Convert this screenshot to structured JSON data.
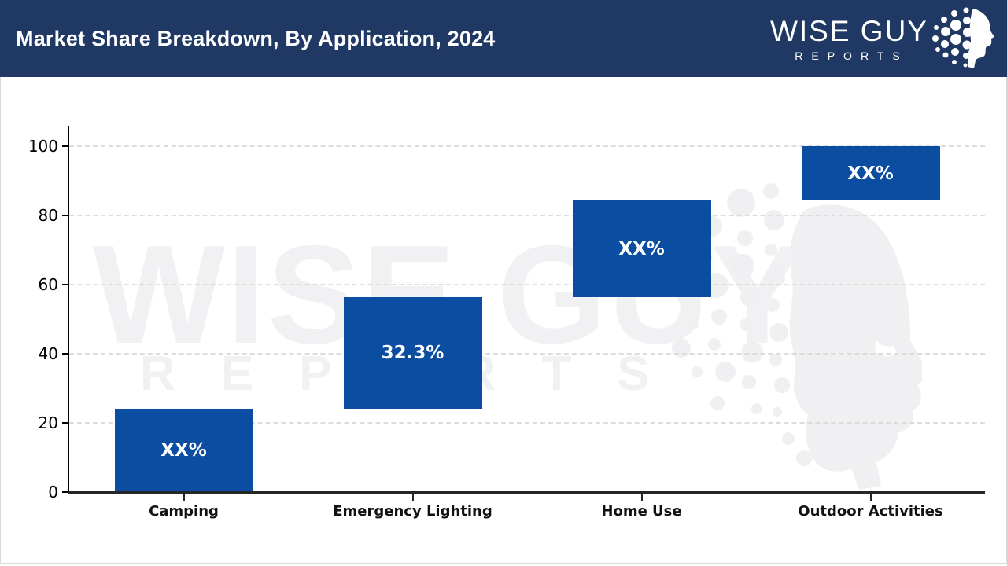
{
  "header": {
    "title": "Market Share Breakdown, By Application, 2024",
    "bg_color": "#1f3864",
    "logo": {
      "line1": "WISE GUY",
      "line2": "REPORTS"
    }
  },
  "watermark": {
    "line1": "WISE GUY",
    "line2": "REPORTS"
  },
  "chart_data": {
    "type": "bar",
    "subtype": "waterfall",
    "title": "Market Share Breakdown, By Application, 2024",
    "categories": [
      "Camping",
      "Emergency Lighting",
      "Home Use",
      "Outdoor Activities"
    ],
    "segments": [
      {
        "category": "Camping",
        "start": 0,
        "end": 24,
        "label": "XX%"
      },
      {
        "category": "Emergency Lighting",
        "start": 24,
        "end": 56.3,
        "label": "32.3%"
      },
      {
        "category": "Home Use",
        "start": 56.3,
        "end": 84.3,
        "label": "XX%"
      },
      {
        "category": "Outdoor Activities",
        "start": 84.3,
        "end": 100,
        "label": "XX%"
      }
    ],
    "ylim": [
      0,
      100
    ],
    "yticks": [
      0,
      20,
      40,
      60,
      80,
      100
    ],
    "xlabel": "",
    "ylabel": "",
    "grid": "horizontal-dashed",
    "legend": "none",
    "bar_color": "#0b4da1",
    "label_color": "#ffffff"
  }
}
